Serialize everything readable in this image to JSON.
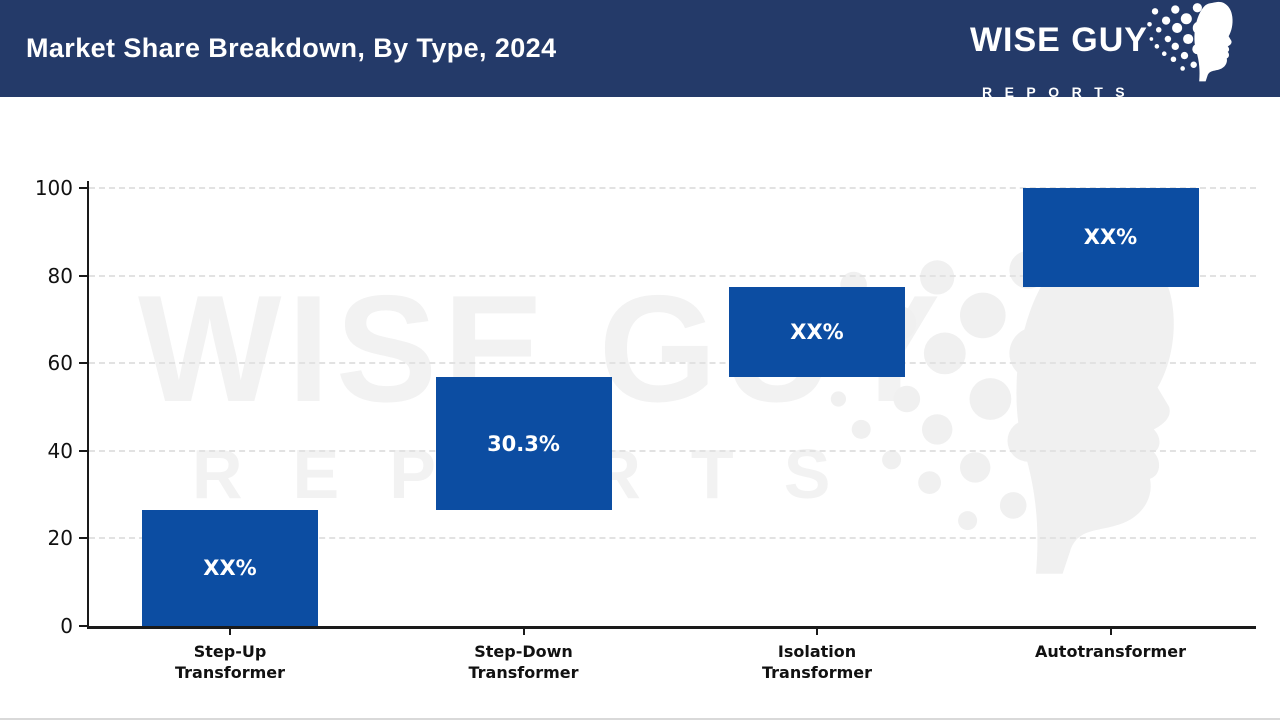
{
  "header": {
    "title": "Market Share Breakdown, By Type, 2024",
    "bg_color": "#243a69",
    "logo": {
      "wordmark": "WISE GUY",
      "subtext": "REPORTS"
    }
  },
  "watermark": {
    "wordmark": "WISE GUY",
    "subtext": "REPORTS"
  },
  "chart_data": {
    "type": "bar",
    "subtype": "waterfall",
    "title": "Market Share Breakdown, By Type, 2024",
    "categories": [
      "Step-Up Transformer",
      "Step-Down Transformer",
      "Isolation Transformer",
      "Autotransformer"
    ],
    "category_labels": [
      "Step-Up\nTransformer",
      "Step-Down\nTransformer",
      "Isolation\nTransformer",
      "Autotransformer"
    ],
    "bars": [
      {
        "category": "Step-Up Transformer",
        "label": "XX%",
        "base": 0,
        "top": 26.5
      },
      {
        "category": "Step-Down Transformer",
        "label": "30.3%",
        "base": 26.5,
        "top": 56.8
      },
      {
        "category": "Isolation Transformer",
        "label": "XX%",
        "base": 56.8,
        "top": 77.5
      },
      {
        "category": "Autotransformer",
        "label": "XX%",
        "base": 77.5,
        "top": 100
      }
    ],
    "yticks": [
      0,
      20,
      40,
      60,
      80,
      100
    ],
    "ylim": [
      0,
      100
    ],
    "xlabel": "",
    "ylabel": "",
    "grid": "horizontal-dashed",
    "colors": {
      "bar": "#0c4da2",
      "bar_label": "#ffffff",
      "axis": "#1a1a1a",
      "grid": "#e2e2e2",
      "tick_text": "#111111"
    }
  }
}
